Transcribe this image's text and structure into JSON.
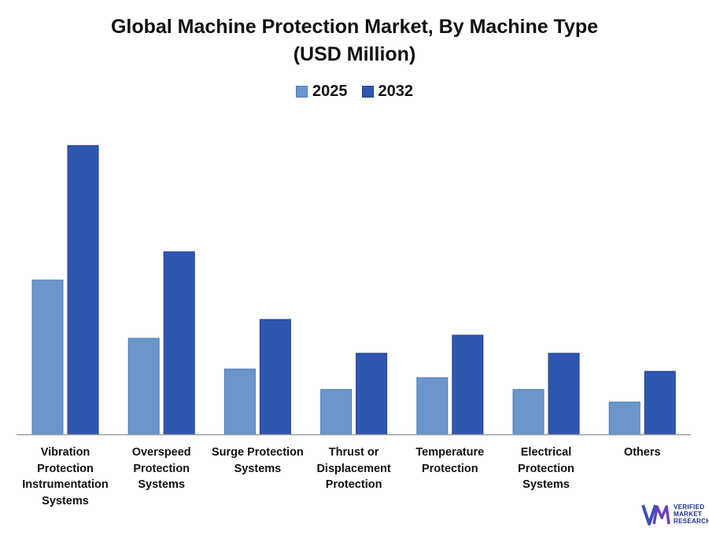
{
  "chart_data": {
    "type": "bar",
    "title": "Global Machine Protection Market, By Machine Type",
    "subtitle": "(USD Million)",
    "categories": [
      [
        "Vibration",
        "Protection",
        "Instrumentation",
        "Systems"
      ],
      [
        "Overspeed",
        "Protection",
        "Systems"
      ],
      [
        "Surge Protection",
        "Systems"
      ],
      [
        "Thrust or",
        "Displacement",
        "Protection"
      ],
      [
        "Temperature",
        "Protection"
      ],
      [
        "Electrical",
        "Protection",
        "Systems"
      ],
      [
        "Others"
      ]
    ],
    "series": [
      {
        "name": "2025",
        "color": "#6a96cc",
        "values": [
          196,
          122,
          83,
          57,
          72,
          57,
          41
        ]
      },
      {
        "name": "2032",
        "color": "#2f56b0",
        "values": [
          367,
          232,
          146,
          103,
          126,
          103,
          80
        ]
      }
    ],
    "ylim": [
      0,
      400
    ],
    "grid": false,
    "legend_position": "top-center",
    "xlabel": "",
    "ylabel": ""
  },
  "logo": {
    "line1": "VERIFIED",
    "line2": "MARKET",
    "line3": "RESEARCH"
  }
}
